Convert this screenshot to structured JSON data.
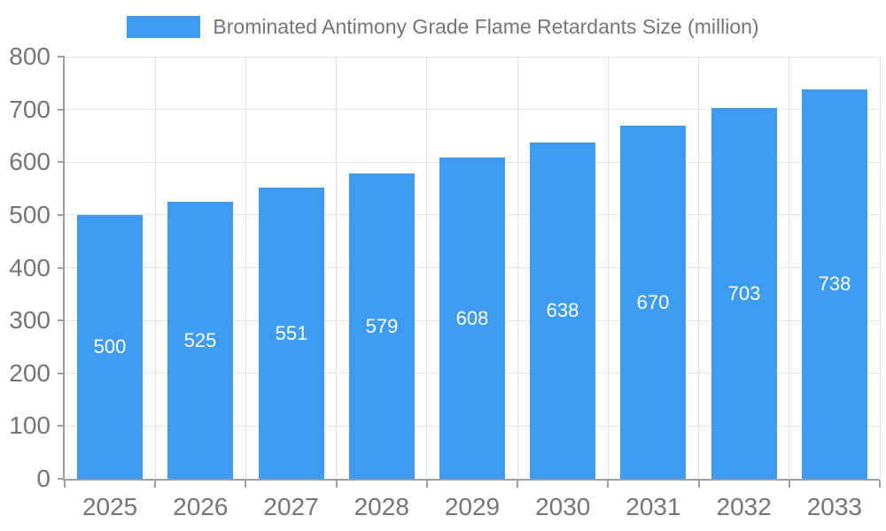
{
  "legend": {
    "label": "Brominated Antimony Grade Flame Retardants Size (million)"
  },
  "chart_data": {
    "type": "bar",
    "title": "Brominated Antimony Grade Flame Retardants Size (million)",
    "categories": [
      "2025",
      "2026",
      "2027",
      "2028",
      "2029",
      "2030",
      "2031",
      "2032",
      "2033"
    ],
    "values": [
      500,
      525,
      551,
      579,
      608,
      638,
      670,
      703,
      738
    ],
    "xlabel": "",
    "ylabel": "",
    "ylim": [
      0,
      800
    ],
    "ytick_interval": 100,
    "ytick_labels": [
      "0",
      "100",
      "200",
      "300",
      "400",
      "500",
      "600",
      "700",
      "800"
    ],
    "grid": true,
    "legend_position": "top",
    "value_labels_position": "center-inside",
    "colors": {
      "bar": "#3D9BF0",
      "value_label": "#ffffff",
      "axis": "#9e9e9e",
      "gridline": "#e3e3e3",
      "tick_label": "#757575",
      "legend_text": "#757575",
      "background": "#ffffff"
    }
  }
}
